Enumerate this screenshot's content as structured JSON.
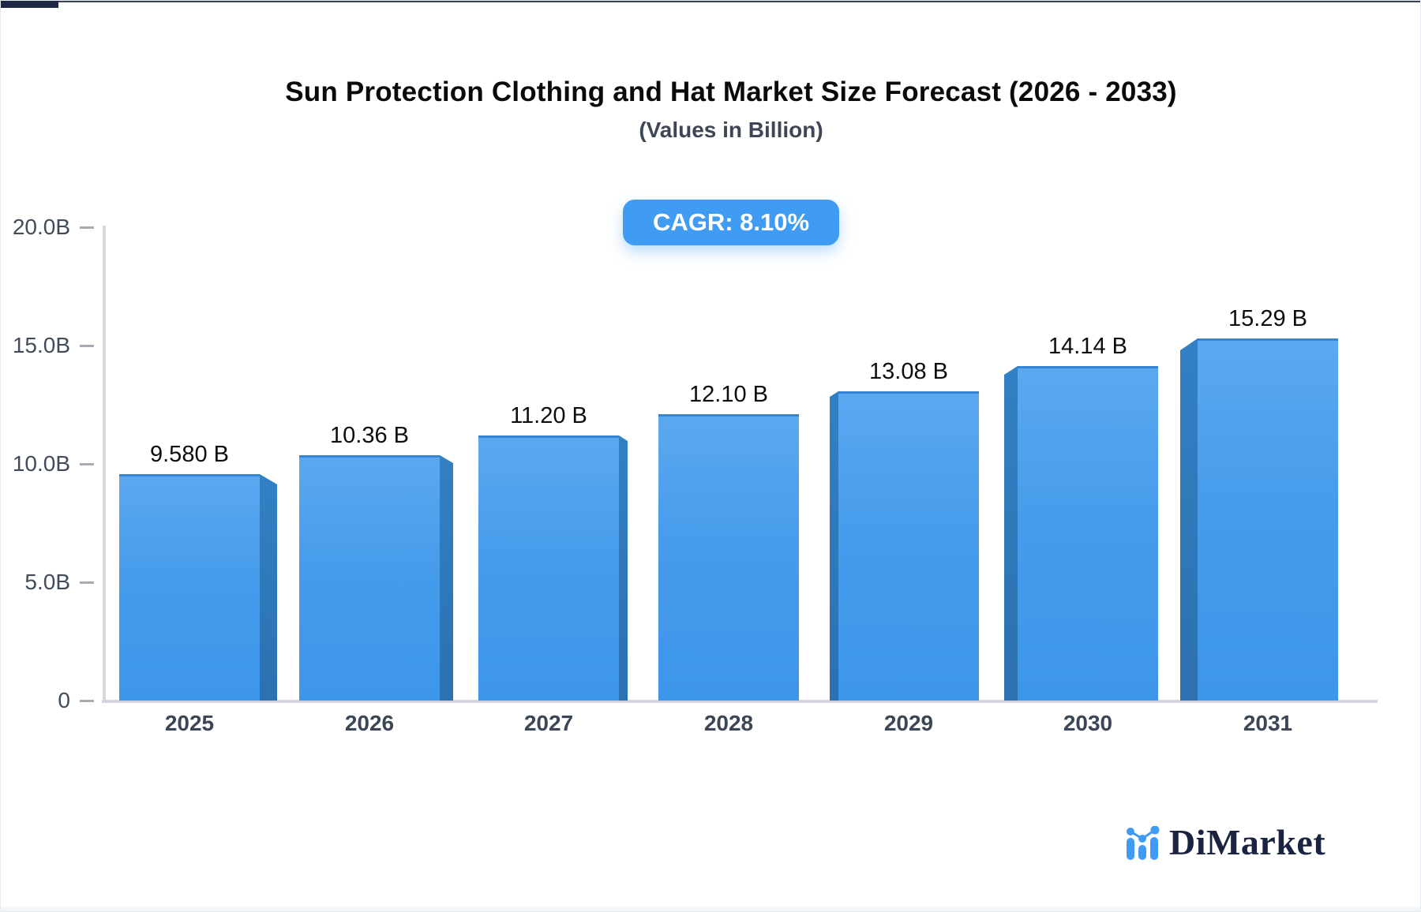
{
  "page": {
    "brand": {
      "name": "DiMarket",
      "icon": "bar-chart-logo-icon",
      "icon_color": "#3f9bf4",
      "text_color": "#1a2340"
    },
    "accent_color": "#3f9cf2"
  },
  "chart_data": {
    "type": "bar",
    "title": "Sun Protection Clothing and Hat Market Size Forecast (2026 - 2033)",
    "subtitle": "(Values in Billion)",
    "cagr_label": "CAGR: 8.10%",
    "cagr_percent": 8.1,
    "categories": [
      "2025",
      "2026",
      "2027",
      "2028",
      "2029",
      "2030",
      "2031"
    ],
    "values": [
      9.58,
      10.36,
      11.2,
      12.1,
      13.08,
      14.14,
      15.29
    ],
    "value_labels": [
      "9.580 B",
      "10.36 B",
      "11.20 B",
      "12.10 B",
      "13.08 B",
      "14.14 B",
      "15.29 B"
    ],
    "units": "Billion",
    "xlabel": "",
    "ylabel": "",
    "ylim": [
      0,
      20
    ],
    "ytick_labels": [
      "20.0B",
      "15.0B",
      "10.0B",
      "5.0B",
      "0"
    ],
    "ytick_values": [
      20,
      15,
      10,
      5,
      0
    ],
    "grid": false,
    "legend": false,
    "bar_color": "#469ceb",
    "bar_side_color": "#2e77b8",
    "bar_style": "3d-center-perspective"
  }
}
